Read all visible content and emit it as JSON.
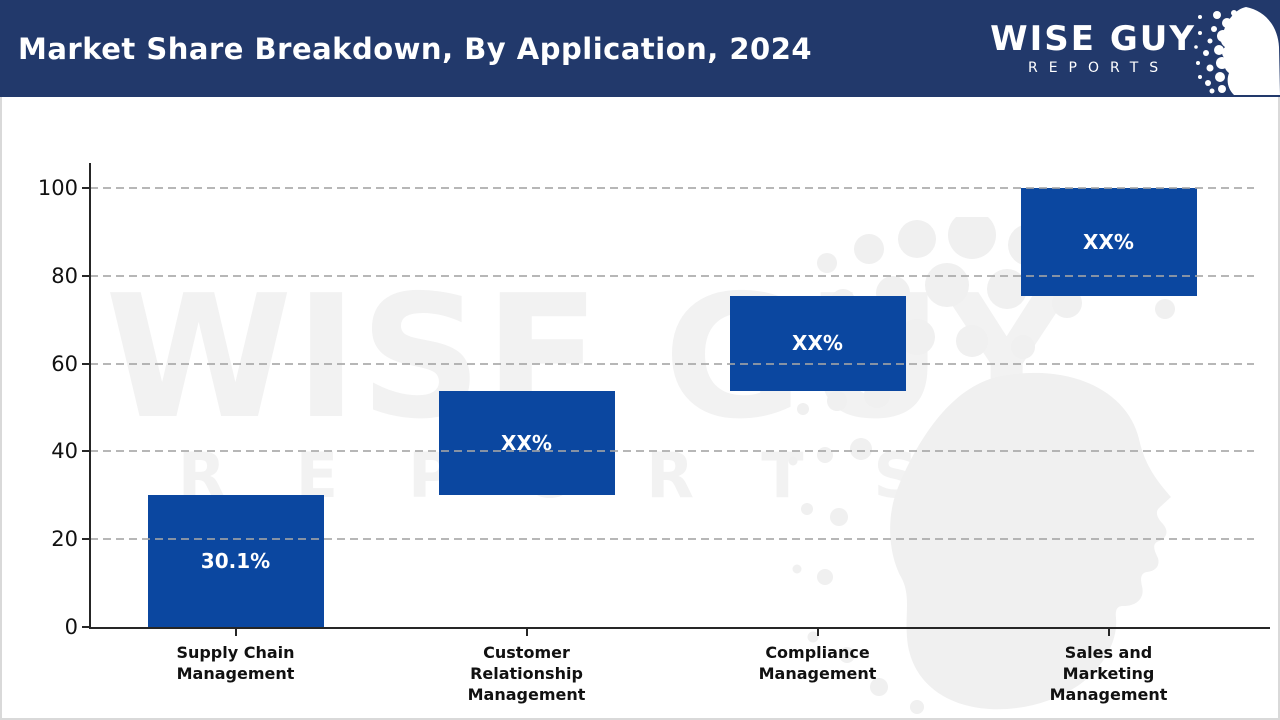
{
  "header": {
    "title": "Market Share Breakdown, By Application, 2024",
    "logo": {
      "line1": "WISE GUY",
      "line2": "REPORTS",
      "face_icon": "dotted-head-profile"
    },
    "background_color": "#22396b",
    "text_color": "#ffffff"
  },
  "watermark": {
    "line1": "WISE GUY",
    "line2": "REPORTS",
    "face_icon": "dotted-head-profile",
    "color": "#f2f2f2"
  },
  "chart_data": {
    "type": "bar",
    "subtype": "floating-waterfall",
    "title": "Market Share Breakdown, By Application, 2024",
    "categories": [
      "Supply Chain\nManagement",
      "Customer\nRelationship\nManagement",
      "Compliance\nManagement",
      "Sales and\nMarketing\nManagement"
    ],
    "segments": [
      {
        "category": "Supply Chain Management",
        "start": 0,
        "end": 30.1,
        "size": 30.1,
        "label": "30.1%"
      },
      {
        "category": "Customer Relationship Management",
        "start": 30.1,
        "end": 53.7,
        "size": 23.6,
        "label": "XX%"
      },
      {
        "category": "Compliance Management",
        "start": 53.7,
        "end": 75.5,
        "size": 21.8,
        "label": "XX%"
      },
      {
        "category": "Sales and Marketing Management",
        "start": 75.5,
        "end": 100,
        "size": 24.5,
        "label": "XX%"
      }
    ],
    "y_ticks": [
      0,
      20,
      40,
      60,
      80,
      100
    ],
    "ylim": [
      0,
      105
    ],
    "xlabel": "",
    "ylabel": "",
    "legend": "none",
    "grid": {
      "axis": "y",
      "style": "dashed",
      "color": "#c9c9c9",
      "drawn_over_bars": true
    },
    "bar_color": "#0b47a0",
    "bar_label_color": "#ffffff",
    "axis_color": "#262626"
  }
}
